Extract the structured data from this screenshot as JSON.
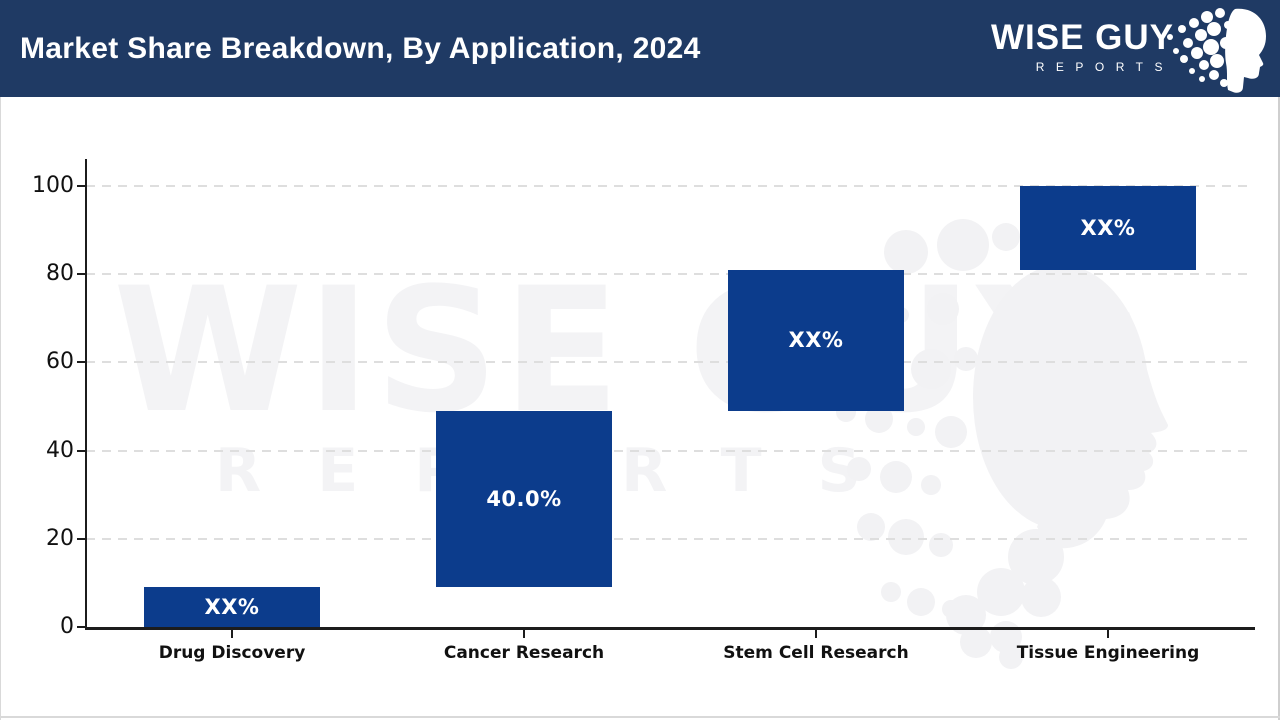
{
  "header": {
    "title": "Market Share Breakdown, By Application, 2024",
    "bg_color": "#1f3a64",
    "logo": {
      "name": "WISE GUY",
      "subtext": "REPORTS"
    }
  },
  "watermark": {
    "line1": "WISE GUY",
    "line2": "REPORTS"
  },
  "chart_data": {
    "type": "bar",
    "subtype": "waterfall-floating-bars",
    "title": "Market Share Breakdown, By Application, 2024",
    "categories": [
      "Drug Discovery",
      "Cancer Research",
      "Stem Cell Research",
      "Tissue Engineering"
    ],
    "segments": [
      {
        "category": "Drug Discovery",
        "start": 0,
        "end": 9,
        "value_label": "XX%"
      },
      {
        "category": "Cancer Research",
        "start": 9,
        "end": 49,
        "value_label": "40.0%"
      },
      {
        "category": "Stem Cell Research",
        "start": 49,
        "end": 81,
        "value_label": "XX%"
      },
      {
        "category": "Tissue Engineering",
        "start": 81,
        "end": 100,
        "value_label": "XX%"
      }
    ],
    "ylim": [
      0,
      100
    ],
    "yticks": [
      0,
      20,
      40,
      60,
      80,
      100
    ],
    "grid": "horizontal-dashed",
    "legend": "none",
    "bar_color": "#0c3c8c",
    "bar_label_color": "#ffffff",
    "axis_color": "#1c1c1c"
  }
}
